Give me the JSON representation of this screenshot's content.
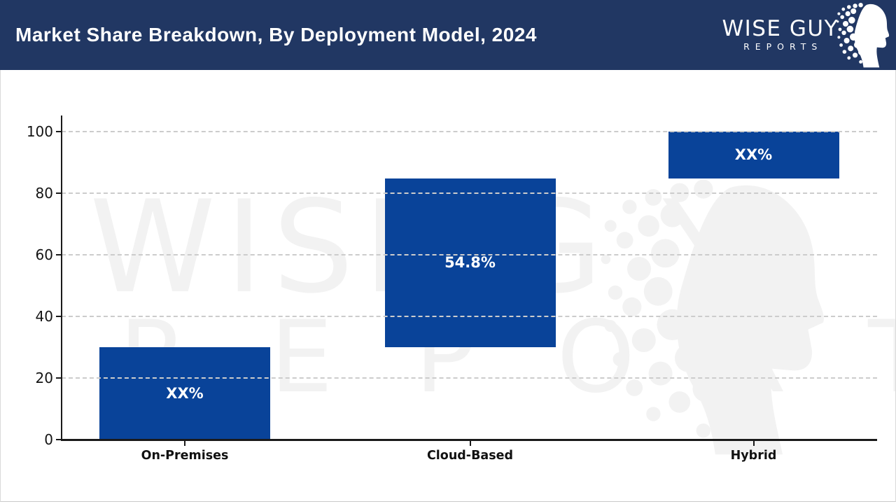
{
  "header": {
    "title": "Market Share Breakdown, By Deployment Model, 2024",
    "logo": {
      "line1": "WISE GUY",
      "line2": "REPORTS"
    }
  },
  "watermark": {
    "line1": "WISE G Y",
    "line2": "R E P O R T S"
  },
  "colors": {
    "header_bg": "#213763",
    "bar_blue": "#094399",
    "grid_gray": "#cccccc",
    "axis_black": "#1a1a1a",
    "watermark_gray": "#f2f2f2",
    "label_white": "#ffffff",
    "text_dark": "#111111"
  },
  "chart_data": {
    "type": "bar",
    "subtype": "floating-waterfall",
    "title": "Market Share Breakdown, By Deployment Model, 2024",
    "categories": [
      "On-Premises",
      "Cloud-Based",
      "Hybrid"
    ],
    "bars": [
      {
        "category": "On-Premises",
        "label": "XX%",
        "start": 0,
        "end": 30
      },
      {
        "category": "Cloud-Based",
        "label": "54.8%",
        "start": 30,
        "end": 84.8
      },
      {
        "category": "Hybrid",
        "label": "XX%",
        "start": 84.8,
        "end": 100
      }
    ],
    "xlabel": "",
    "ylabel": "",
    "ylim": [
      0,
      100
    ],
    "yticks": [
      0,
      20,
      40,
      60,
      80,
      100
    ],
    "grid": "horizontal-dashed",
    "legend": "none"
  }
}
